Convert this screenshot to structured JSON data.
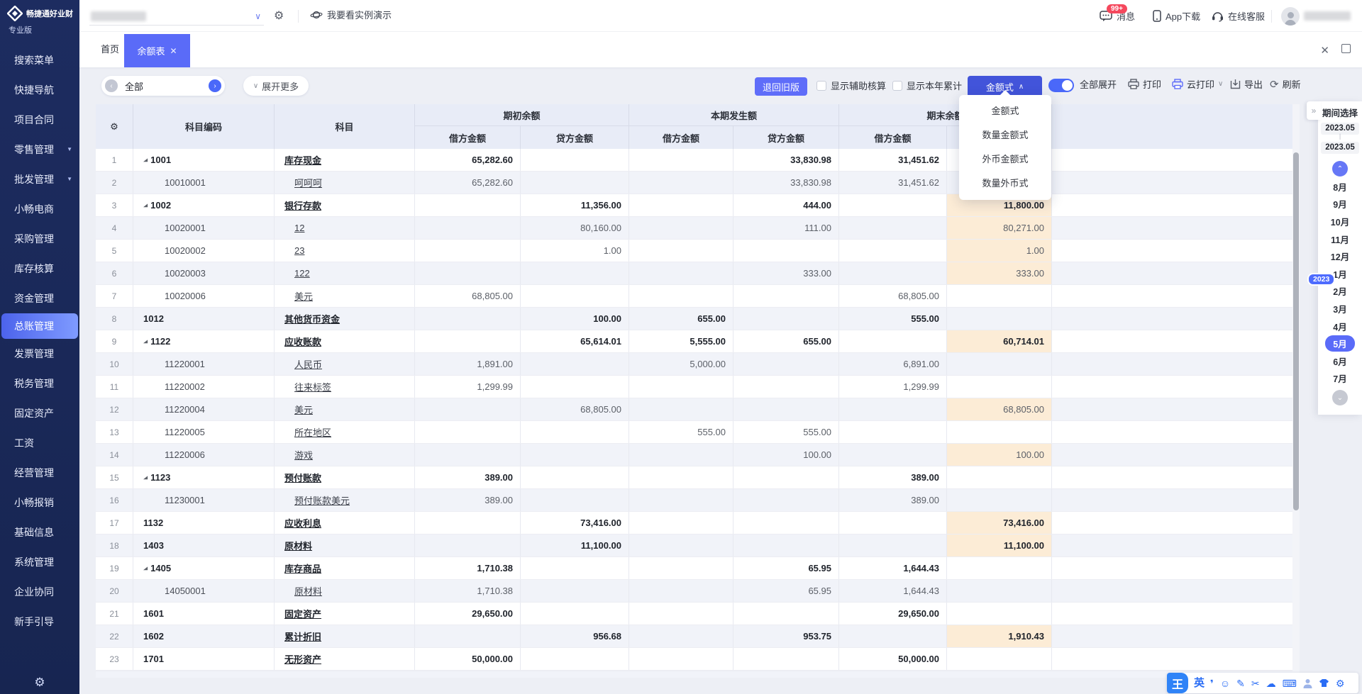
{
  "brand": {
    "name": "畅捷通好业财",
    "edition": "专业版"
  },
  "topbar": {
    "demo": "我要看实例演示",
    "messages": "消息",
    "messages_badge": "99+",
    "app_download": "App下载",
    "service": "在线客服"
  },
  "tabs": {
    "home": "首页",
    "current": "余额表"
  },
  "sidebar": {
    "items": [
      {
        "label": "搜索菜单"
      },
      {
        "label": "快捷导航"
      },
      {
        "label": "项目合同"
      },
      {
        "label": "零售管理",
        "caret": true
      },
      {
        "label": "批发管理",
        "caret": true
      },
      {
        "label": "小畅电商"
      },
      {
        "label": "采购管理"
      },
      {
        "label": "库存核算"
      },
      {
        "label": "资金管理"
      },
      {
        "label": "总账管理",
        "active": true
      },
      {
        "label": "发票管理"
      },
      {
        "label": "税务管理"
      },
      {
        "label": "固定资产"
      },
      {
        "label": "工资"
      },
      {
        "label": "经营管理"
      },
      {
        "label": "小畅报销"
      },
      {
        "label": "基础信息"
      },
      {
        "label": "系统管理"
      },
      {
        "label": "企业协同"
      },
      {
        "label": "新手引导"
      }
    ]
  },
  "toolbar": {
    "scope": "全部",
    "expand_more": "展开更多",
    "back_old": "退回旧版",
    "show_aux": "显示辅助核算",
    "show_ytd": "显示本年累计",
    "format": "金额式",
    "expand_all": "全部展开",
    "print": "打印",
    "cloud_print": "云打印",
    "export": "导出",
    "refresh": "刷新"
  },
  "format_menu": {
    "items": [
      "金额式",
      "数量金额式",
      "外币金额式",
      "数量外币式"
    ]
  },
  "table": {
    "header": {
      "code": "科目编码",
      "subject": "科目",
      "opening": "期初余额",
      "current": "本期发生额",
      "ending": "期末余额",
      "debit": "借方金额",
      "credit": "贷方金额"
    },
    "rows": [
      {
        "n": 1,
        "code": "1001",
        "name": "库存现金",
        "level": 1,
        "expand": true,
        "v": [
          "65,282.60",
          "",
          "",
          "33,830.98",
          "31,451.62",
          ""
        ]
      },
      {
        "n": 2,
        "code": "10010001",
        "name": "呵呵呵",
        "level": 2,
        "expand": false,
        "v": [
          "65,282.60",
          "",
          "",
          "33,830.98",
          "31,451.62",
          ""
        ]
      },
      {
        "n": 3,
        "code": "1002",
        "name": "银行存款",
        "level": 1,
        "expand": true,
        "v": [
          "",
          "11,356.00",
          "",
          "444.00",
          "",
          "11,800.00"
        ]
      },
      {
        "n": 4,
        "code": "10020001",
        "name": "12",
        "level": 2,
        "expand": false,
        "v": [
          "",
          "80,160.00",
          "",
          "111.00",
          "",
          "80,271.00"
        ]
      },
      {
        "n": 5,
        "code": "10020002",
        "name": "23",
        "level": 2,
        "expand": false,
        "v": [
          "",
          "1.00",
          "",
          "",
          "",
          "1.00"
        ]
      },
      {
        "n": 6,
        "code": "10020003",
        "name": "122",
        "level": 2,
        "expand": false,
        "v": [
          "",
          "",
          "",
          "333.00",
          "",
          "333.00"
        ]
      },
      {
        "n": 7,
        "code": "10020006",
        "name": "美元",
        "level": 2,
        "expand": false,
        "v": [
          "68,805.00",
          "",
          "",
          "",
          "68,805.00",
          ""
        ]
      },
      {
        "n": 8,
        "code": "1012",
        "name": "其他货币资金",
        "level": 1,
        "expand": false,
        "v": [
          "",
          "100.00",
          "655.00",
          "",
          "555.00",
          ""
        ]
      },
      {
        "n": 9,
        "code": "1122",
        "name": "应收账款",
        "level": 1,
        "expand": true,
        "v": [
          "",
          "65,614.01",
          "5,555.00",
          "655.00",
          "",
          "60,714.01"
        ]
      },
      {
        "n": 10,
        "code": "11220001",
        "name": "人民币",
        "level": 2,
        "expand": false,
        "v": [
          "1,891.00",
          "",
          "5,000.00",
          "",
          "6,891.00",
          ""
        ]
      },
      {
        "n": 11,
        "code": "11220002",
        "name": "往来标签",
        "level": 2,
        "expand": false,
        "v": [
          "1,299.99",
          "",
          "",
          "",
          "1,299.99",
          ""
        ]
      },
      {
        "n": 12,
        "code": "11220004",
        "name": "美元",
        "level": 2,
        "expand": false,
        "v": [
          "",
          "68,805.00",
          "",
          "",
          "",
          "68,805.00"
        ]
      },
      {
        "n": 13,
        "code": "11220005",
        "name": "所在地区",
        "level": 2,
        "expand": false,
        "v": [
          "",
          "",
          "555.00",
          "555.00",
          "",
          ""
        ]
      },
      {
        "n": 14,
        "code": "11220006",
        "name": "游戏",
        "level": 2,
        "expand": false,
        "v": [
          "",
          "",
          "",
          "100.00",
          "",
          "100.00"
        ]
      },
      {
        "n": 15,
        "code": "1123",
        "name": "预付账款",
        "level": 1,
        "expand": true,
        "v": [
          "389.00",
          "",
          "",
          "",
          "389.00",
          ""
        ]
      },
      {
        "n": 16,
        "code": "11230001",
        "name": "预付账款美元",
        "level": 2,
        "expand": false,
        "v": [
          "389.00",
          "",
          "",
          "",
          "389.00",
          ""
        ]
      },
      {
        "n": 17,
        "code": "1132",
        "name": "应收利息",
        "level": 1,
        "expand": false,
        "v": [
          "",
          "73,416.00",
          "",
          "",
          "",
          "73,416.00"
        ]
      },
      {
        "n": 18,
        "code": "1403",
        "name": "原材料",
        "level": 1,
        "expand": false,
        "v": [
          "",
          "11,100.00",
          "",
          "",
          "",
          "11,100.00"
        ]
      },
      {
        "n": 19,
        "code": "1405",
        "name": "库存商品",
        "level": 1,
        "expand": true,
        "v": [
          "1,710.38",
          "",
          "",
          "65.95",
          "1,644.43",
          ""
        ]
      },
      {
        "n": 20,
        "code": "14050001",
        "name": "原材料",
        "level": 2,
        "expand": false,
        "v": [
          "1,710.38",
          "",
          "",
          "65.95",
          "1,644.43",
          ""
        ]
      },
      {
        "n": 21,
        "code": "1601",
        "name": "固定资产",
        "level": 1,
        "expand": false,
        "v": [
          "29,650.00",
          "",
          "",
          "",
          "29,650.00",
          ""
        ]
      },
      {
        "n": 22,
        "code": "1602",
        "name": "累计折旧",
        "level": 1,
        "expand": false,
        "v": [
          "",
          "956.68",
          "",
          "953.75",
          "",
          "1,910.43"
        ]
      },
      {
        "n": 23,
        "code": "1701",
        "name": "无形资产",
        "level": 1,
        "expand": false,
        "v": [
          "50,000.00",
          "",
          "",
          "",
          "50,000.00",
          ""
        ]
      }
    ]
  },
  "period": {
    "title": "期间选择",
    "from": "2023.05",
    "to": "2023.05",
    "year_badge": "2023",
    "months": [
      "8月",
      "9月",
      "10月",
      "11月",
      "12月",
      "1月",
      "2月",
      "3月",
      "4月",
      "5月",
      "6月",
      "7月"
    ],
    "selected": "5月"
  },
  "ime": {
    "han": "王",
    "lang": "英",
    "icons": [
      "quote",
      "emoji",
      "handwriting",
      "cut",
      "cloud",
      "keyboard",
      "person",
      "skin",
      "settings"
    ]
  },
  "colors": {
    "accent": "#5a6bf8",
    "accent_dark": "#4254da",
    "orange_cell": "#fcecd6",
    "sidebar": "#1d2c60",
    "badge_red": "#f5485d"
  }
}
